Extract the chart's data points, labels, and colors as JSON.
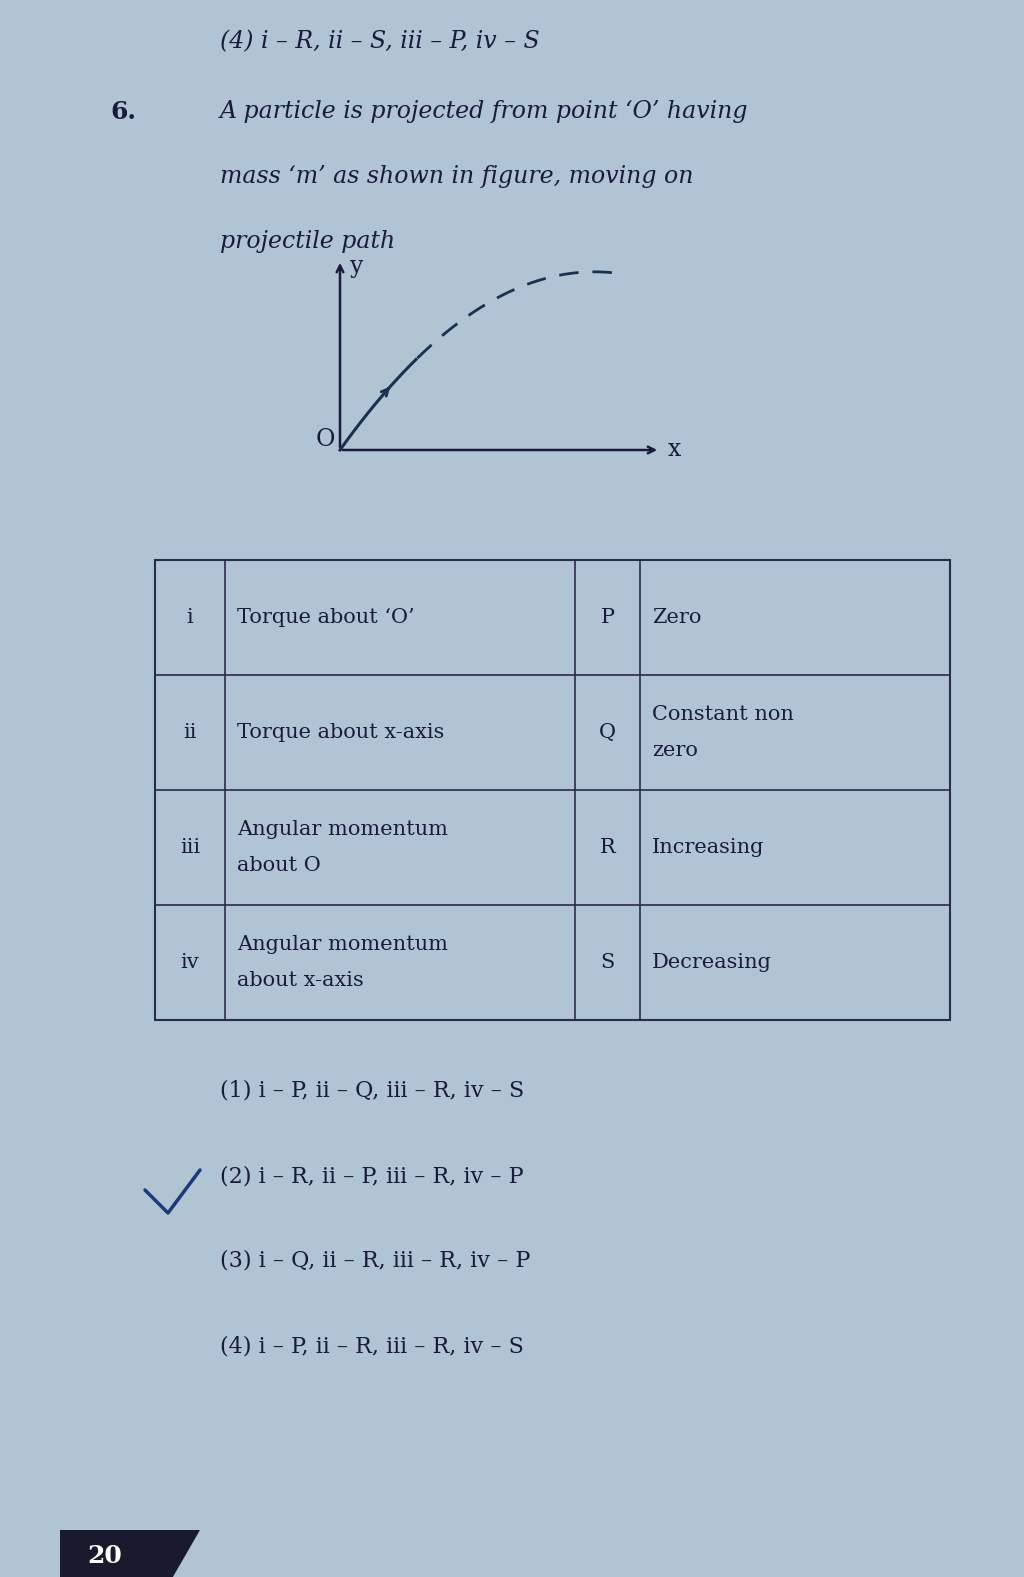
{
  "bg_color": "#b0c4d4",
  "page_number": "20",
  "prev_option": "(4) i – R, ii – S, iii – P, iv – S",
  "question_number": "6.",
  "q_line1": "A particle is projected from point ‘O’ having",
  "q_line2": "mass ‘m’ as shown in figure, moving on",
  "q_line3": "projectile path",
  "table_rows": [
    [
      "i",
      "Torque about ‘O’",
      "P",
      "Zero"
    ],
    [
      "ii",
      "Torque about x-axis",
      "Q",
      "Constant non\nzero"
    ],
    [
      "iii",
      "Angular momentum\nabout O",
      "R",
      "Increasing"
    ],
    [
      "iv",
      "Angular momentum\nabout x-axis",
      "S",
      "Decreasing"
    ]
  ],
  "options": [
    "(1) i – P, ii – Q, iii – R, iv – S",
    "(2) i – R, ii – P, iii – R, iv – P",
    "(3) i – Q, ii – R, iii – R, iv – P",
    "(4) i – P, ii – R, iii – R, iv – S"
  ],
  "correct_option_index": 1,
  "text_color": "#1a1a3a",
  "table_line_color": "#2a2a4a",
  "font_size_main": 17,
  "font_size_option": 16,
  "font_size_table": 15
}
